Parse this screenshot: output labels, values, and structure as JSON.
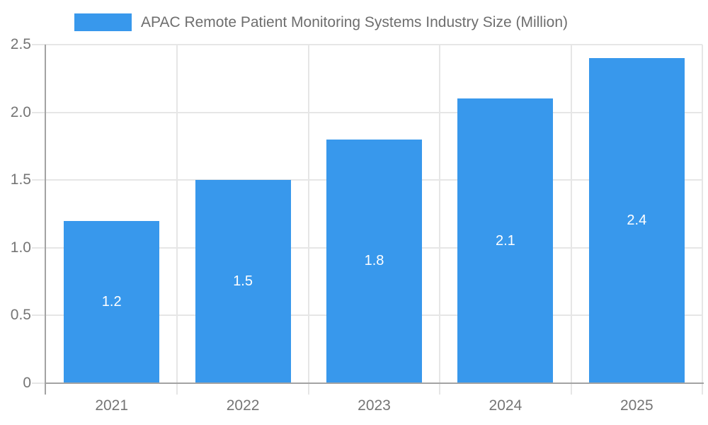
{
  "legend": {
    "label": "APAC Remote Patient Monitoring Systems Industry Size (Million)"
  },
  "colors": {
    "bar": "#3898EC",
    "grid": "#E6E6E6",
    "axis": "#A3A3A3",
    "tick_text": "#757575",
    "legend_text": "#6E6E6E",
    "bar_label_text": "#FFFFFF",
    "background": "#FFFFFF"
  },
  "chart_data": {
    "type": "bar",
    "title": "APAC Remote Patient Monitoring Systems Industry Size (Million)",
    "categories": [
      "2021",
      "2022",
      "2023",
      "2024",
      "2025"
    ],
    "values": [
      1.2,
      1.5,
      1.8,
      2.1,
      2.4
    ],
    "bar_labels": [
      "1.2",
      "1.5",
      "1.8",
      "2.1",
      "2.4"
    ],
    "xlabel": "",
    "ylabel": "",
    "ylim": [
      0,
      2.5
    ],
    "y_ticks": [
      {
        "value": 0,
        "label": "0"
      },
      {
        "value": 0.5,
        "label": "0.5"
      },
      {
        "value": 1.0,
        "label": "1.0"
      },
      {
        "value": 1.5,
        "label": "1.5"
      },
      {
        "value": 2.0,
        "label": "2.0"
      },
      {
        "value": 2.5,
        "label": "2.5"
      }
    ],
    "grid": true,
    "legend_position": "top"
  }
}
